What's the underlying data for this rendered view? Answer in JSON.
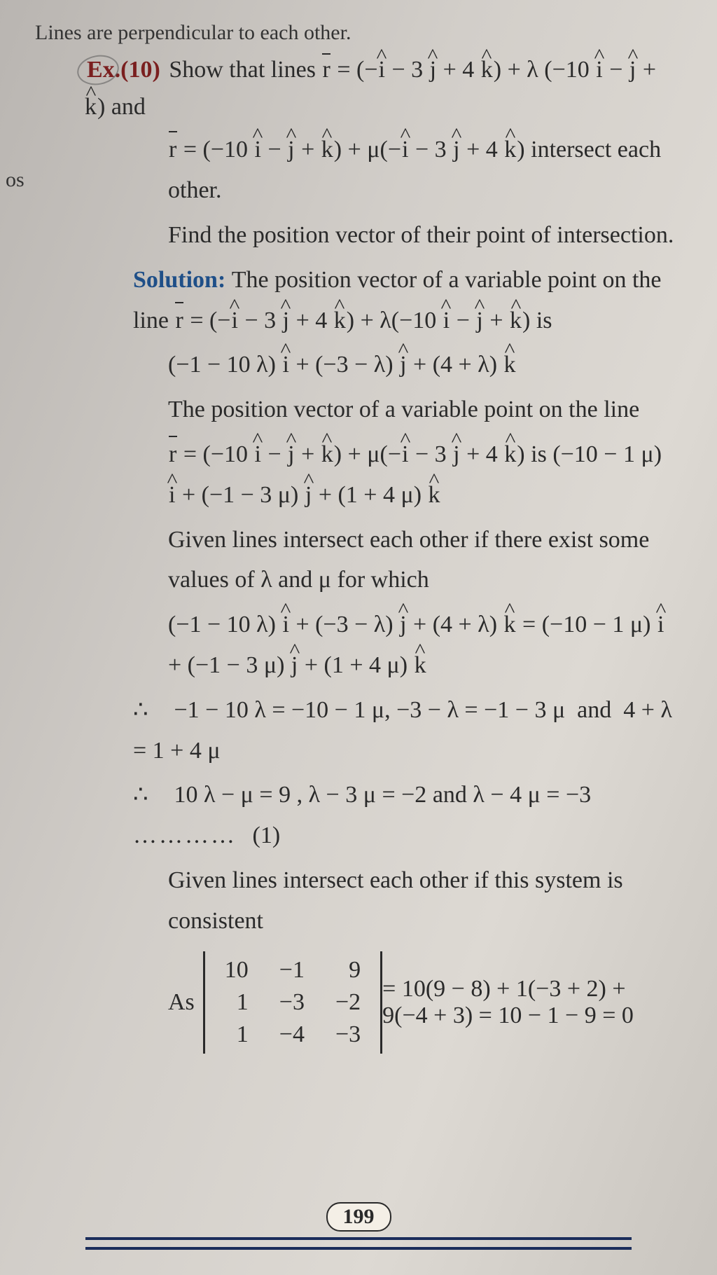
{
  "fragments": {
    "top": "Lines are perpendicular to each other.",
    "side": "os"
  },
  "example": {
    "label": "Ex.(10)",
    "line1_a": "Show that lines ",
    "line1_b": " and",
    "line2_b": " intersect each other.",
    "line3": "Find the position vector of their point of intersection."
  },
  "solution": {
    "label": "Solution: ",
    "s1_a": "The position vector of a variable point on the line ",
    "s1_b": " is",
    "s3": "The position vector of a variable point on the line",
    "s4_b": " is ",
    "s5_a": "Given lines intersect each other if there exist some values of ",
    "s5_b": " for which",
    "s8_a": " and ",
    "s8_dots": "…………",
    "s8_eq": "(1)",
    "s9": "Given lines intersect each other if this system is consistent"
  },
  "det": {
    "lead": "As",
    "rows": [
      [
        "10",
        "−1",
        "9"
      ],
      [
        "1",
        "−3",
        "−2"
      ],
      [
        "1",
        "−4",
        "−3"
      ]
    ],
    "rhs": " = 10(9 − 8) + 1(−3 + 2) + 9(−4 + 3) = 10 − 1 − 9 = 0"
  },
  "page_number": "199",
  "colors": {
    "heading": "#7a1f1f",
    "solution": "#1f4f88",
    "rule": "#1b2d5b",
    "text": "#2a2a2a"
  }
}
